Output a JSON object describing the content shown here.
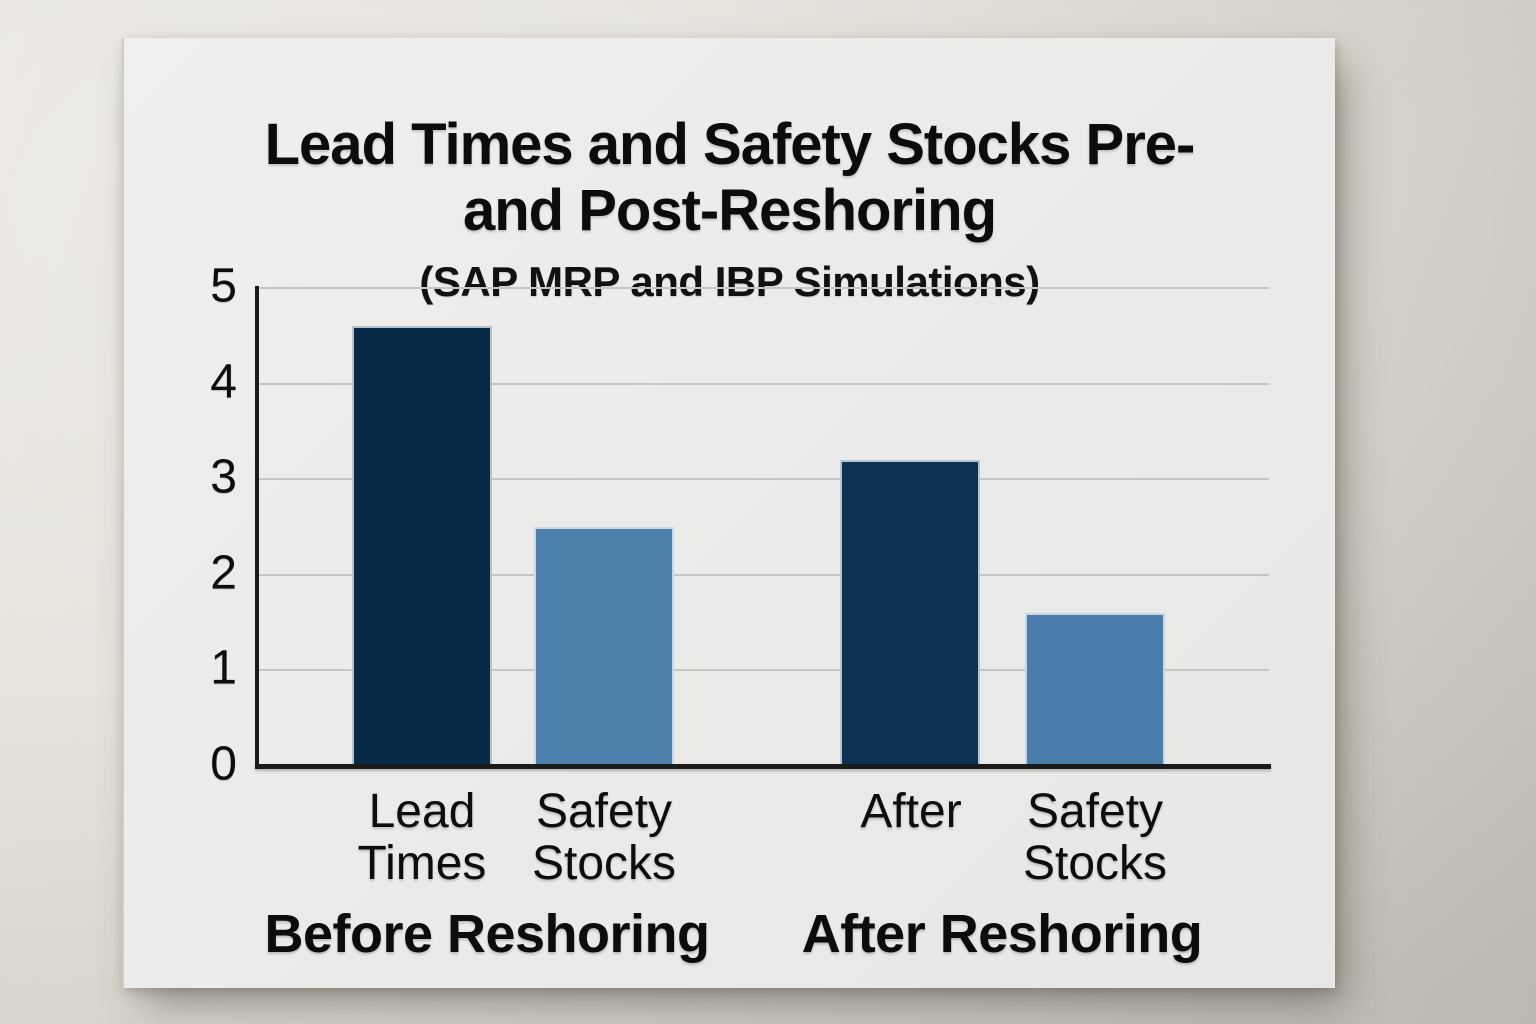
{
  "chart_data": {
    "type": "bar",
    "title": "Lead Times and Safety Stocks Pre- and Post-Reshoring",
    "title_lines": [
      "Lead Times and Safety Stocks Pre-",
      "and Post-Reshoring"
    ],
    "subtitle": "(SAP MRP and IBP Simulations)",
    "xlabel": "",
    "ylabel": "",
    "ylim": [
      0,
      5
    ],
    "yticks": [
      0,
      1,
      2,
      3,
      4,
      5
    ],
    "grid": "horizontal",
    "legend": "none",
    "colors": {
      "dark_navy": "#072a46",
      "navy": "#0d3153",
      "steel_blue": "#4d80ab",
      "steel_blue_2": "#4a7dab",
      "axis": "#1b1b1b",
      "gridline": "#c6c6c5",
      "card": "#ebebea",
      "wall": "#d6d3cb"
    },
    "bars": [
      {
        "group": "Before Reshoring",
        "label": "Lead Times",
        "label_lines": [
          "Lead",
          "Times"
        ],
        "value": 4.6,
        "color": "#072a46"
      },
      {
        "group": "Before Reshoring",
        "label": "Safety Stocks",
        "label_lines": [
          "Safety",
          "Stocks"
        ],
        "value": 2.5,
        "color": "#4d80ab"
      },
      {
        "group": "After Reshoring",
        "label": "After",
        "label_lines": [
          "After"
        ],
        "value": 3.2,
        "color": "#0d3153"
      },
      {
        "group": "After Reshoring",
        "label": "Safety Stocks",
        "label_lines": [
          "Safety",
          "Stocks"
        ],
        "value": 1.6,
        "color": "#4a7dab"
      }
    ],
    "group_labels": [
      "Before Reshoring",
      "After Reshoring"
    ]
  }
}
